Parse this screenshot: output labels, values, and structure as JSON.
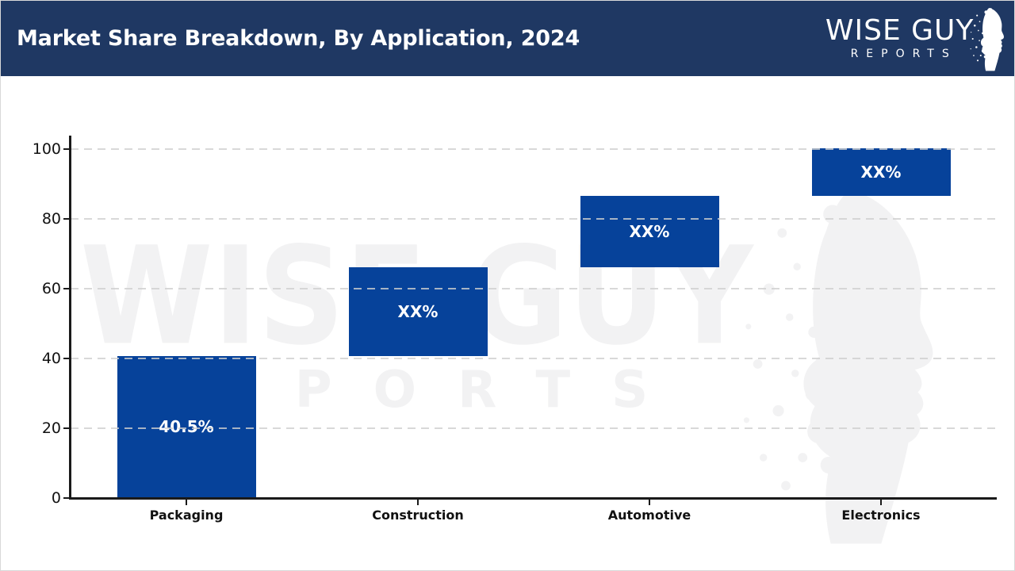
{
  "header": {
    "title": "Market Share Breakdown, By Application, 2024",
    "logo": {
      "line1": "WISE GUY",
      "line2": "REPORTS"
    }
  },
  "watermark": {
    "line1": "WISE GUY",
    "line2": "REPORTS"
  },
  "colors": {
    "header_bg": "#1f3863",
    "bar": "#06429a",
    "bar_label": "#ffffff",
    "axis": "#1a1a1a",
    "tick_label": "#111111",
    "grid": "#cfcfcf",
    "watermark": "#f2f2f3",
    "border": "#d9d9d9"
  },
  "chart_data": {
    "type": "bar",
    "subtype": "waterfall",
    "title": "Market Share Breakdown, By Application, 2024",
    "categories": [
      "Packaging",
      "Construction",
      "Automotive",
      "Electronics"
    ],
    "segments": [
      {
        "category": "Packaging",
        "start": 0,
        "end": 40.5,
        "value": 40.5,
        "value_label": "40.5%"
      },
      {
        "category": "Construction",
        "start": 40.5,
        "end": 66.0,
        "value": 25.5,
        "value_label": "XX%"
      },
      {
        "category": "Automotive",
        "start": 66.0,
        "end": 86.3,
        "value": 20.3,
        "value_label": "XX%"
      },
      {
        "category": "Electronics",
        "start": 86.3,
        "end": 100,
        "value": 13.7,
        "value_label": "XX%"
      }
    ],
    "ylim": [
      0,
      100
    ],
    "yticks": [
      0,
      20,
      40,
      60,
      80,
      100
    ],
    "grid": {
      "axis": "y",
      "style": "dashed",
      "above_bars": true
    },
    "legend": "none",
    "bar_width_frac": 0.6
  }
}
